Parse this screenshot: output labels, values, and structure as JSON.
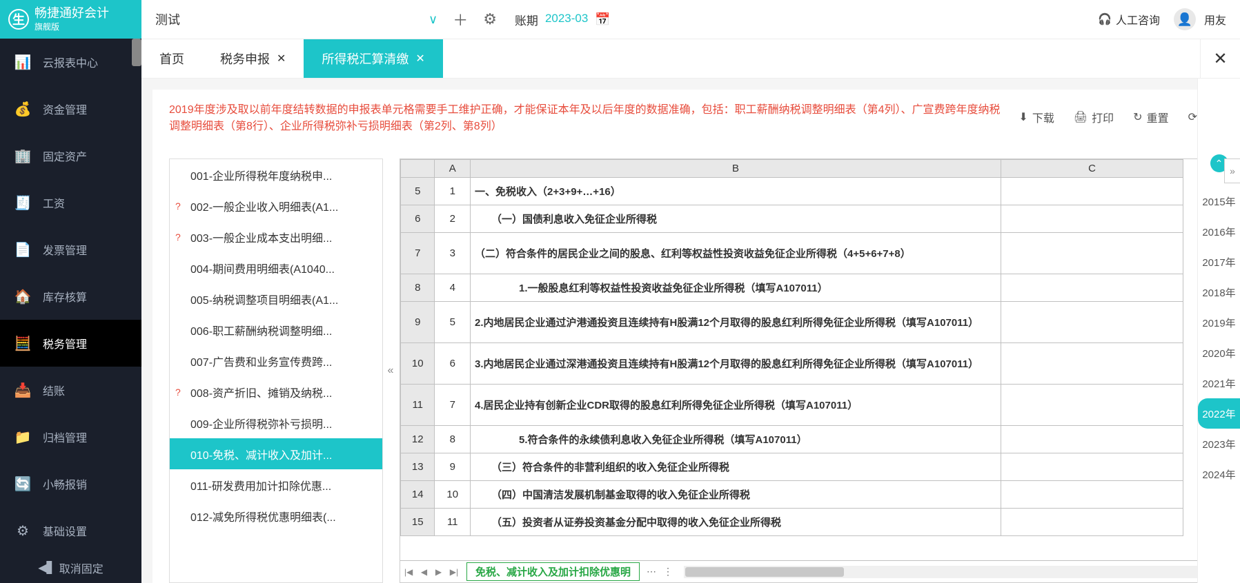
{
  "brand": {
    "name": "畅捷通好会计",
    "edition": "旗舰版"
  },
  "nav": {
    "items": [
      {
        "id": "report-center",
        "label": "云报表中心",
        "icon": "📊"
      },
      {
        "id": "funds",
        "label": "资金管理",
        "icon": "💰"
      },
      {
        "id": "fixed-assets",
        "label": "固定资产",
        "icon": "🏢"
      },
      {
        "id": "salary",
        "label": "工资",
        "icon": "🧾"
      },
      {
        "id": "invoice",
        "label": "发票管理",
        "icon": "📄"
      },
      {
        "id": "inventory",
        "label": "库存核算",
        "icon": "🏠"
      },
      {
        "id": "tax",
        "label": "税务管理",
        "icon": "🧮"
      },
      {
        "id": "closing",
        "label": "结账",
        "icon": "📥"
      },
      {
        "id": "archive",
        "label": "归档管理",
        "icon": "📁"
      },
      {
        "id": "reimburse",
        "label": "小畅报销",
        "icon": "🔄"
      },
      {
        "id": "settings",
        "label": "基础设置",
        "icon": "⚙"
      }
    ],
    "active": "tax",
    "unpin": "取消固定"
  },
  "topbar": {
    "company": "测试",
    "period_label": "账期",
    "period_value": "2023-03",
    "consult": "人工咨询",
    "user": "用友"
  },
  "tabs": {
    "items": [
      {
        "id": "home",
        "label": "首页",
        "closable": false
      },
      {
        "id": "tax-file",
        "label": "税务申报",
        "closable": true
      },
      {
        "id": "income-tax",
        "label": "所得税汇算清缴",
        "closable": true
      }
    ],
    "active": "income-tax"
  },
  "page": {
    "warning": "2019年度涉及取以前年度结转数据的申报表单元格需要手工维护正确，才能保证本年及以后年度的数据准确，包括：职工薪酬纳税调整明细表（第4列）、广宣费跨年度纳税调整明细表（第8行）、企业所得税弥补亏损明细表（第2列、第8列）",
    "tools": {
      "download": "下载",
      "print": "打印",
      "reset": "重置",
      "refresh": "刷新"
    },
    "formList": {
      "active": 9,
      "items": [
        {
          "label": "001-企业所得税年度纳税申...",
          "warn": false
        },
        {
          "label": "002-一般企业收入明细表(A1...",
          "warn": true
        },
        {
          "label": "003-一般企业成本支出明细...",
          "warn": true
        },
        {
          "label": "004-期间费用明细表(A1040...",
          "warn": false
        },
        {
          "label": "005-纳税调整项目明细表(A1...",
          "warn": false
        },
        {
          "label": "006-职工薪酬纳税调整明细...",
          "warn": false
        },
        {
          "label": "007-广告费和业务宣传费跨...",
          "warn": false
        },
        {
          "label": "008-资产折旧、摊销及纳税...",
          "warn": true
        },
        {
          "label": "009-企业所得税弥补亏损明...",
          "warn": false
        },
        {
          "label": "010-免税、减计收入及加计...",
          "warn": false
        },
        {
          "label": "011-研发费用加计扣除优惠...",
          "warn": false
        },
        {
          "label": "012-减免所得税优惠明细表(...",
          "warn": false
        }
      ]
    },
    "sheet": {
      "columns": [
        "A",
        "B",
        "C"
      ],
      "tabName": "免税、减计收入及加计扣除优惠明",
      "rows": [
        {
          "hdr": "5",
          "a": "1",
          "b": "一、免税收入（2+3+9+…+16）",
          "tall": false,
          "bold": true
        },
        {
          "hdr": "6",
          "a": "2",
          "b": "（一）国债利息收入免征企业所得税",
          "tall": false,
          "indent": 1
        },
        {
          "hdr": "7",
          "a": "3",
          "b": "（二）符合条件的居民企业之间的股息、红利等权益性投资收益免征企业所得税（4+5+6+7+8）",
          "tall": true
        },
        {
          "hdr": "8",
          "a": "4",
          "b": "1.一般股息红利等权益性投资收益免征企业所得税（填写A107011）",
          "tall": false,
          "indent": 2
        },
        {
          "hdr": "9",
          "a": "5",
          "b": "2.内地居民企业通过沪港通投资且连续持有H股满12个月取得的股息红利所得免征企业所得税（填写A107011）",
          "tall": true
        },
        {
          "hdr": "10",
          "a": "6",
          "b": "3.内地居民企业通过深港通投资且连续持有H股满12个月取得的股息红利所得免征企业所得税（填写A107011）",
          "tall": true
        },
        {
          "hdr": "11",
          "a": "7",
          "b": "4.居民企业持有创新企业CDR取得的股息红利所得免征企业所得税（填写A107011）",
          "tall": true
        },
        {
          "hdr": "12",
          "a": "8",
          "b": "5.符合条件的永续债利息收入免征企业所得税（填写A107011）",
          "tall": false,
          "indent": 2
        },
        {
          "hdr": "13",
          "a": "9",
          "b": "（三）符合条件的非营利组织的收入免征企业所得税",
          "tall": false,
          "indent": 1
        },
        {
          "hdr": "14",
          "a": "10",
          "b": "（四）中国清洁发展机制基金取得的收入免征企业所得税",
          "tall": false,
          "indent": 1
        },
        {
          "hdr": "15",
          "a": "11",
          "b": "（五）投资者从证券投资基金分配中取得的收入免征企业所得税",
          "tall": false,
          "indent": 1
        }
      ]
    }
  },
  "yearRail": {
    "years": [
      "2015年",
      "2016年",
      "2017年",
      "2018年",
      "2019年",
      "2020年",
      "2021年",
      "2022年",
      "2023年",
      "2024年"
    ],
    "active": "2022年"
  },
  "colors": {
    "accent": "#1dc5c9",
    "danger": "#e74c3c",
    "sidebar": "#1a1f2b"
  }
}
